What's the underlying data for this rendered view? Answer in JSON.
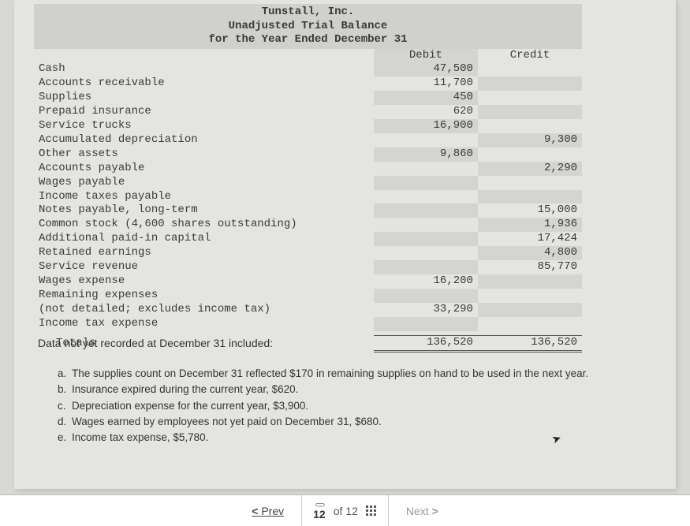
{
  "header": {
    "company": "Tunstall, Inc.",
    "title": "Unadjusted Trial Balance",
    "period": "for the Year Ended December 31"
  },
  "columns": {
    "debit": "Debit",
    "credit": "Credit"
  },
  "rows": [
    {
      "label": "Cash",
      "debit": "47,500",
      "credit": ""
    },
    {
      "label": "Accounts receivable",
      "debit": "11,700",
      "credit": ""
    },
    {
      "label": "Supplies",
      "debit": "450",
      "credit": ""
    },
    {
      "label": "Prepaid insurance",
      "debit": "620",
      "credit": ""
    },
    {
      "label": "Service trucks",
      "debit": "16,900",
      "credit": ""
    },
    {
      "label": "Accumulated depreciation",
      "debit": "",
      "credit": "9,300"
    },
    {
      "label": "Other assets",
      "debit": "9,860",
      "credit": ""
    },
    {
      "label": "Accounts payable",
      "debit": "",
      "credit": "2,290"
    },
    {
      "label": "Wages payable",
      "debit": "",
      "credit": ""
    },
    {
      "label": "Income taxes payable",
      "debit": "",
      "credit": ""
    },
    {
      "label": "Notes payable, long-term",
      "debit": "",
      "credit": "15,000"
    },
    {
      "label": "Common stock (4,600 shares outstanding)",
      "debit": "",
      "credit": "1,936"
    },
    {
      "label": "Additional paid-in capital",
      "debit": "",
      "credit": "17,424"
    },
    {
      "label": "Retained earnings",
      "debit": "",
      "credit": "4,800"
    },
    {
      "label": "Service revenue",
      "debit": "",
      "credit": "85,770"
    },
    {
      "label": "Wages expense",
      "debit": "16,200",
      "credit": ""
    },
    {
      "label": "Remaining expenses",
      "debit": "",
      "credit": ""
    },
    {
      "label": "(not detailed; excludes income tax)",
      "debit": "33,290",
      "credit": ""
    },
    {
      "label": "Income tax expense",
      "debit": "",
      "credit": ""
    }
  ],
  "totals": {
    "label": "Totals",
    "debit": "136,520",
    "credit": "136,520"
  },
  "question": {
    "prompt": "Data not yet recorded at December 31 included:",
    "items": [
      {
        "letter": "a.",
        "text": "The supplies count on December 31 reflected $170 in remaining supplies on hand to be used in the next year."
      },
      {
        "letter": "b.",
        "text": "Insurance expired during the current year, $620."
      },
      {
        "letter": "c.",
        "text": "Depreciation expense for the current year, $3,900."
      },
      {
        "letter": "d.",
        "text": "Wages earned by employees not yet paid on December 31, $680."
      },
      {
        "letter": "e.",
        "text": "Income tax expense, $5,780."
      }
    ]
  },
  "footer": {
    "prev": "Prev",
    "next": "Next",
    "page_current": "12",
    "page_of": "of 12",
    "link_icon": "⊂⊃"
  },
  "style": {
    "bg": "#d8d9d7",
    "paper_bg": "#e4e5e2",
    "shade_bg": "#d4d4d1",
    "mono_font": "Courier New",
    "sans_font": "Arial",
    "text_color": "#3a3a38",
    "footer_bg": "#ffffff"
  }
}
